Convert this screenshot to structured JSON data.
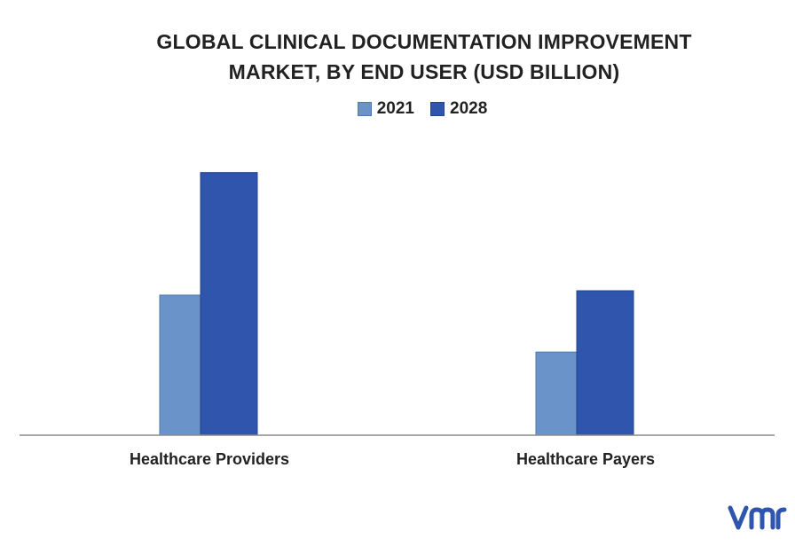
{
  "chart_data": {
    "type": "bar",
    "title_lines": [
      "GLOBAL CLINICAL DOCUMENTATION IMPROVEMENT",
      "MARKET, BY END USER (USD BILLION)"
    ],
    "categories": [
      "Healthcare Providers",
      "Healthcare Payers"
    ],
    "series": [
      {
        "name": "2021",
        "values": [
          1.6,
          0.95
        ],
        "color": "#6a93c9"
      },
      {
        "name": "2028",
        "values": [
          3.0,
          1.65
        ],
        "color": "#2f55ad"
      }
    ],
    "ylim": [
      0,
      3.3
    ],
    "xlabel": "",
    "ylabel": "",
    "grid": false,
    "legend_position": "top"
  },
  "logo": {
    "name": "vmr-logo",
    "color": "#2f55ad"
  }
}
